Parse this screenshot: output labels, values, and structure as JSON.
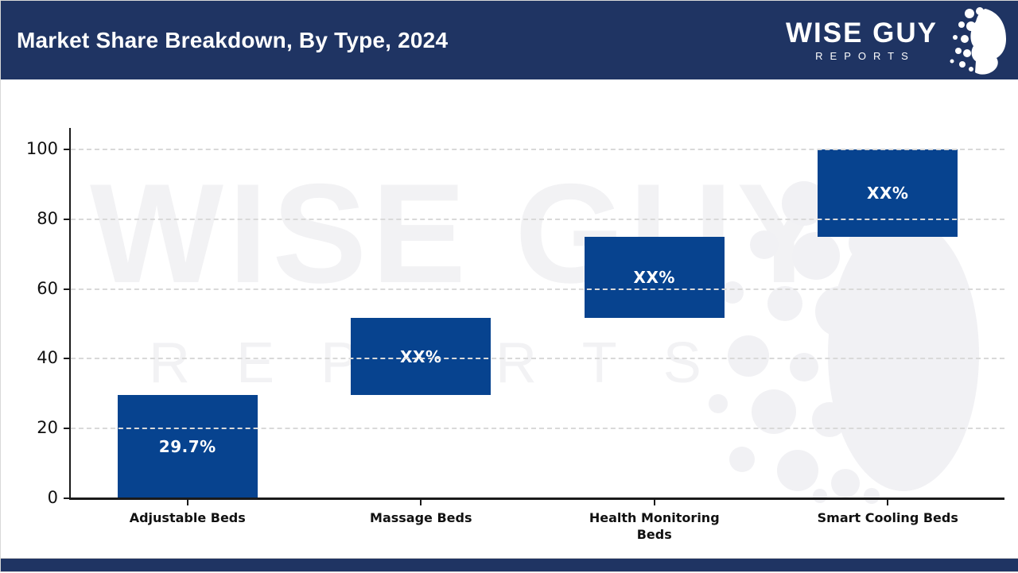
{
  "header": {
    "title": "Market Share Breakdown, By Type, 2024",
    "logo_line1": "WISE GUY",
    "logo_line2": "REPORTS",
    "bg_color": "#1F3463"
  },
  "watermark": {
    "line1": "WISE GUY",
    "line2": "REPORTS"
  },
  "chart_data": {
    "type": "bar",
    "subtype": "waterfall",
    "title": "Market Share Breakdown, By Type, 2024",
    "categories": [
      "Adjustable Beds",
      "Massage Beds",
      "Health Monitoring Beds",
      "Smart Cooling Beds"
    ],
    "segments": [
      {
        "start": 0,
        "end": 29.7,
        "label": "29.7%"
      },
      {
        "start": 29.7,
        "end": 51.6,
        "label": "XX%"
      },
      {
        "start": 51.6,
        "end": 75,
        "label": "XX%"
      },
      {
        "start": 75,
        "end": 100,
        "label": "XX%"
      }
    ],
    "ylim": [
      0,
      100
    ],
    "yticks": [
      0,
      20,
      40,
      60,
      80,
      100
    ],
    "xlabel": "",
    "ylabel": "",
    "legend": "none",
    "grid": "horizontal-dashed",
    "bar_color": "#07438F",
    "bar_label_color": "#FFFFFF",
    "gridline_color": "#D9D9D9",
    "axis_color": "#1A1A1A"
  },
  "footer": {
    "bg_color": "#1F3463"
  }
}
